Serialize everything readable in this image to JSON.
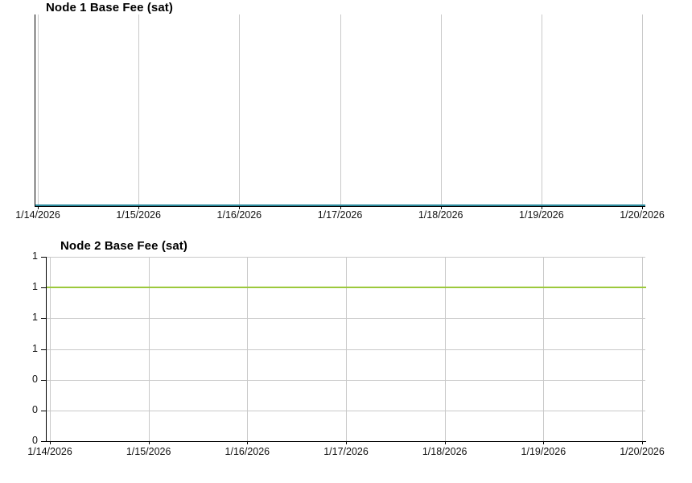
{
  "page": {
    "background_color": "#ffffff",
    "text_color": "#111111",
    "axis_color": "#000000",
    "grid_color": "#c9c9c9"
  },
  "chart_data": [
    {
      "type": "line",
      "title": "Node 1 Base Fee (sat)",
      "xlabel": "",
      "ylabel": "",
      "x_tick_labels": [
        "1/14/2026",
        "1/15/2026",
        "1/16/2026",
        "1/17/2026",
        "1/18/2026",
        "1/19/2026",
        "1/20/2026"
      ],
      "y_tick_labels": [],
      "ylim": [
        0,
        1
      ],
      "grid": "vertical-only",
      "legend": "none",
      "series": [
        {
          "name": "Node 1 Base Fee (sat)",
          "color": "#2a8a9d",
          "x": [
            "1/14/2026",
            "1/15/2026",
            "1/16/2026",
            "1/17/2026",
            "1/18/2026",
            "1/19/2026",
            "1/20/2026"
          ],
          "values": [
            0,
            0,
            0,
            0,
            0,
            0,
            0
          ]
        }
      ]
    },
    {
      "type": "line",
      "title": "Node 2 Base Fee (sat)",
      "xlabel": "",
      "ylabel": "",
      "x_tick_labels": [
        "1/14/2026",
        "1/15/2026",
        "1/16/2026",
        "1/17/2026",
        "1/18/2026",
        "1/19/2026",
        "1/20/2026"
      ],
      "y_tick_labels": [
        "1",
        "1",
        "1",
        "1",
        "0",
        "0",
        "0"
      ],
      "ylim": [
        0,
        1.2
      ],
      "y_tick_step": 0.2,
      "grid": "full",
      "legend": "none",
      "series": [
        {
          "name": "Node 2 Base Fee (sat)",
          "color": "#9cc93c",
          "x": [
            "1/14/2026",
            "1/15/2026",
            "1/16/2026",
            "1/17/2026",
            "1/18/2026",
            "1/19/2026",
            "1/20/2026"
          ],
          "values": [
            1,
            1,
            1,
            1,
            1,
            1,
            1
          ]
        }
      ]
    }
  ]
}
